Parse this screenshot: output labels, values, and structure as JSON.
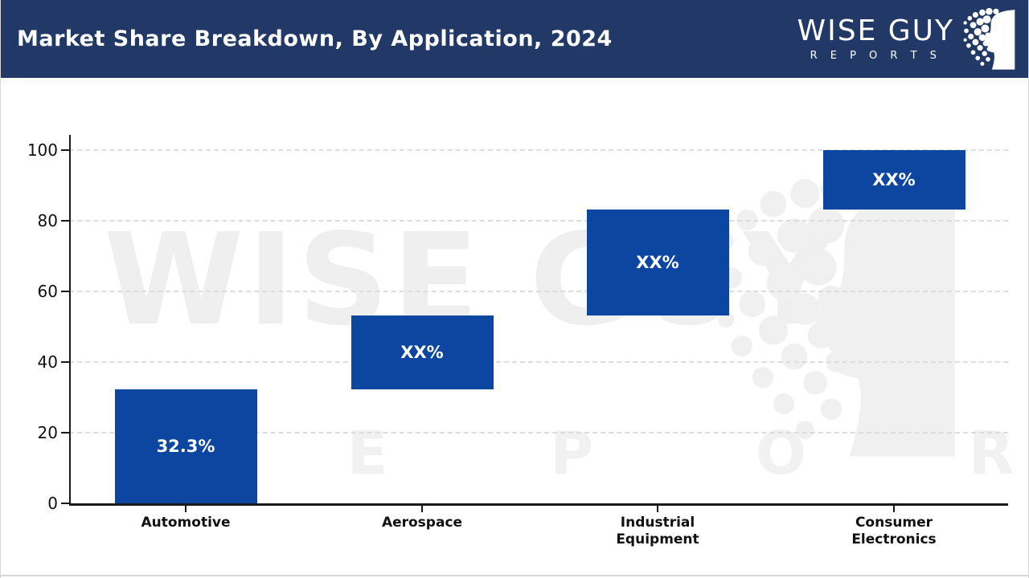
{
  "header": {
    "title": "Market Share Breakdown, By Application, 2024",
    "logo": {
      "line1": "WISE GUY",
      "line2": "R E P O R T S"
    }
  },
  "watermark": {
    "line1": "WISE GUY",
    "line2": "R E P O R T S"
  },
  "chart_data": {
    "type": "bar",
    "subtype": "waterfall",
    "title": "Market Share Breakdown, By Application, 2024",
    "categories": [
      "Automotive",
      "Aerospace",
      "Industrial Equipment",
      "Consumer Electronics"
    ],
    "bars": [
      {
        "category": "Automotive",
        "start": 0,
        "end": 32.3,
        "label": "32.3%"
      },
      {
        "category": "Aerospace",
        "start": 32.3,
        "end": 53.2,
        "label": "XX%"
      },
      {
        "category": "Industrial Equipment",
        "start": 53.2,
        "end": 83.2,
        "label": "XX%"
      },
      {
        "category": "Consumer Electronics",
        "start": 83.2,
        "end": 100,
        "label": "XX%"
      }
    ],
    "y_ticks": [
      0,
      20,
      40,
      60,
      80,
      100
    ],
    "ylim": [
      0,
      104
    ],
    "xlabel": "",
    "ylabel": "",
    "grid": "horizontal-dashed",
    "legend": "none",
    "colors": {
      "bar": "#0c46a0",
      "bar_label": "#ffffff",
      "axis": "#1a1a1a",
      "gridline": "#dcdcdc",
      "header_bg": "#223968",
      "watermark": "#f0f0f0"
    }
  }
}
